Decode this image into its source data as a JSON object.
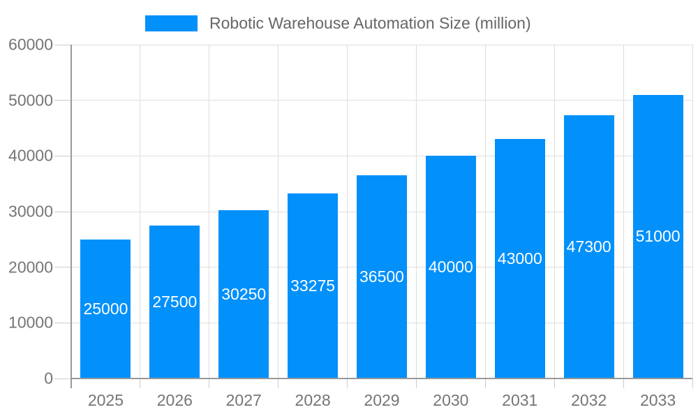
{
  "legend": {
    "label": "Robotic Warehouse Automation Size (million)"
  },
  "chart_data": {
    "type": "bar",
    "title": "Robotic Warehouse Automation Size (million)",
    "categories": [
      "2025",
      "2026",
      "2027",
      "2028",
      "2029",
      "2030",
      "2031",
      "2032",
      "2033"
    ],
    "values": [
      25000,
      27500,
      30250,
      33275,
      36500,
      40000,
      43000,
      47300,
      51000
    ],
    "xlabel": "",
    "ylabel": "",
    "ylim": [
      0,
      60000
    ],
    "ytick_step": 10000,
    "ytick_labels": [
      "0",
      "10000",
      "20000",
      "30000",
      "40000",
      "50000",
      "60000"
    ],
    "grid": true,
    "legend_position": "top",
    "bar_color": "#0290fa",
    "value_label_color": "#ffffff",
    "axis_line_color": "#999999",
    "gridline_color": "#dddddd",
    "tick_color": "#cccccc",
    "axis_text_color": "#757575"
  }
}
